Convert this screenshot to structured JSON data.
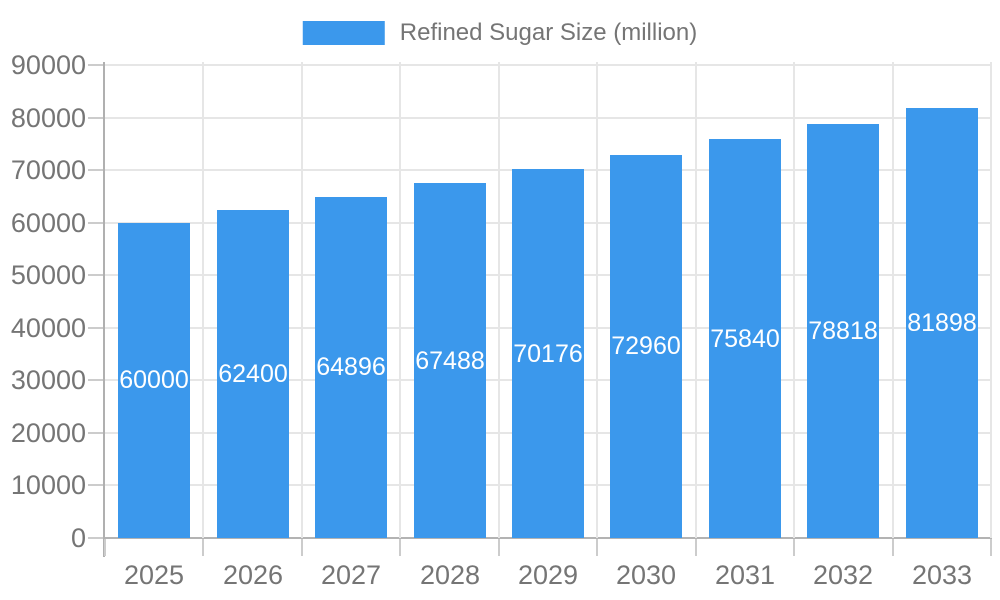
{
  "chart_data": {
    "type": "bar",
    "title": "",
    "legend": "Refined Sugar Size (million)",
    "legend_position": "top-center",
    "categories": [
      "2025",
      "2026",
      "2027",
      "2028",
      "2029",
      "2030",
      "2031",
      "2032",
      "2033"
    ],
    "values": [
      60000,
      62400,
      64896,
      67488,
      70176,
      72960,
      75840,
      78818,
      81898
    ],
    "bar_value_labels": [
      "60000",
      "62400",
      "64896",
      "67488",
      "70176",
      "72960",
      "75840",
      "78818",
      "81898"
    ],
    "xlabel": "",
    "ylabel": "",
    "ylim": [
      0,
      90000
    ],
    "y_ticks": [
      0,
      10000,
      20000,
      30000,
      40000,
      50000,
      60000,
      70000,
      80000,
      90000
    ],
    "grid": true,
    "value_label_position": "inside-center",
    "colors": {
      "bar": "#3b98ec",
      "bar_label": "#ffffff",
      "axis_label": "#757575",
      "gridline": "#e6e6e6",
      "axis_line": "#b0b0b0",
      "baseline": "#b3b3b3",
      "tick": "#cccccc",
      "background": "#ffffff"
    }
  }
}
